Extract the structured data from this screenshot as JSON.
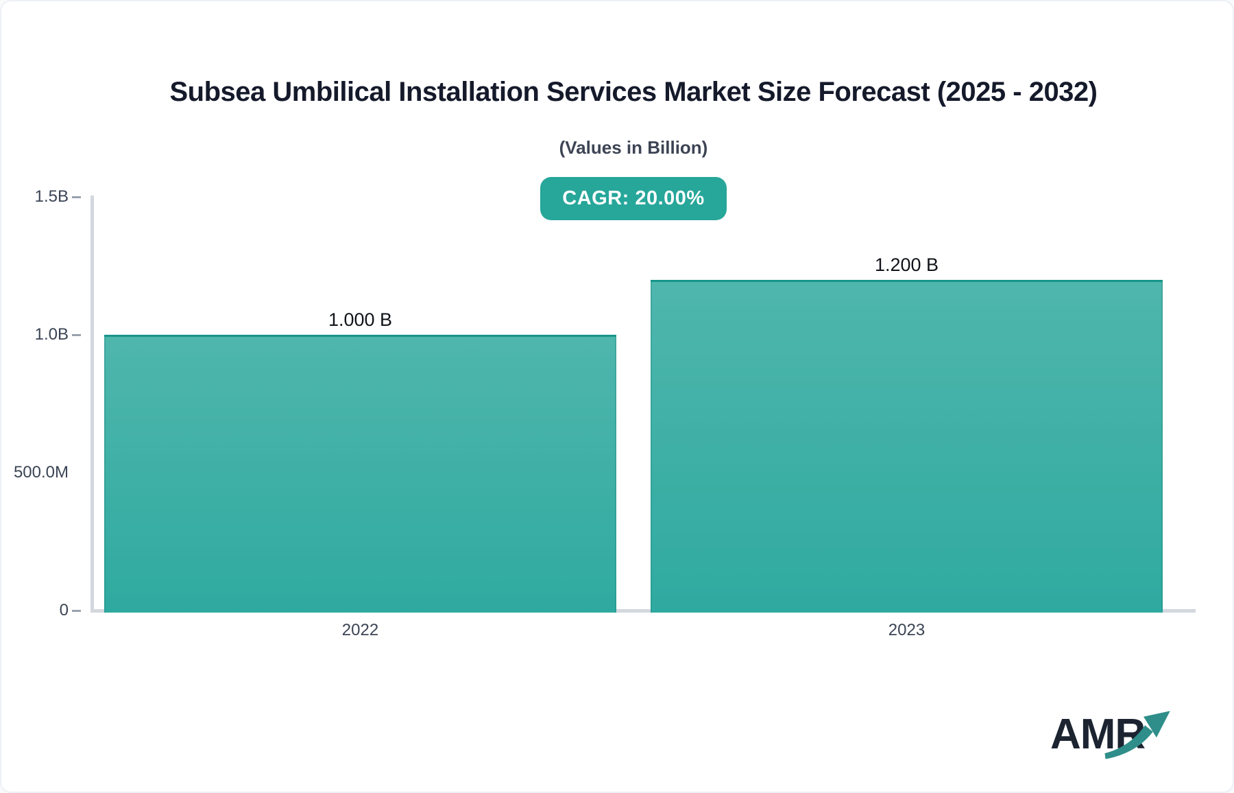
{
  "chart_data": {
    "type": "bar",
    "title": "Subsea Umbilical Installation Services Market Size Forecast (2025 - 2032)",
    "subtitle": "(Values in Billion)",
    "cagr_badge_label": "CAGR: 20.00%",
    "categories": [
      "2022",
      "2023"
    ],
    "values": [
      1.0,
      1.2
    ],
    "value_labels": [
      "1.000 B",
      "1.200 B"
    ],
    "unit": "Billion",
    "ylim": [
      0,
      1.5
    ],
    "yticks": [
      {
        "label": "1.5B",
        "value": 1.5,
        "dash": true
      },
      {
        "label": "1.0B",
        "value": 1.0,
        "dash": true
      },
      {
        "label": "500.0M",
        "value": 0.5,
        "dash": false
      },
      {
        "label": "0",
        "value": 0.0,
        "dash": true
      }
    ],
    "grid": false,
    "legend": false,
    "colors": {
      "bar_gradient_top": "#4fb6ac",
      "bar_gradient_bottom": "#2faaa0",
      "bar_top_border": "#17948a",
      "badge_background": "#27a69a",
      "badge_text": "#ffffff",
      "axis_line": "#d3d7de",
      "tick_text": "#3b4454",
      "title_text": "#151a2b"
    }
  },
  "logo": {
    "text": "AMR",
    "arrow_icon": "trend-up-arrow",
    "arrow_color": "#2f8e8a",
    "text_color": "#1c2431"
  }
}
